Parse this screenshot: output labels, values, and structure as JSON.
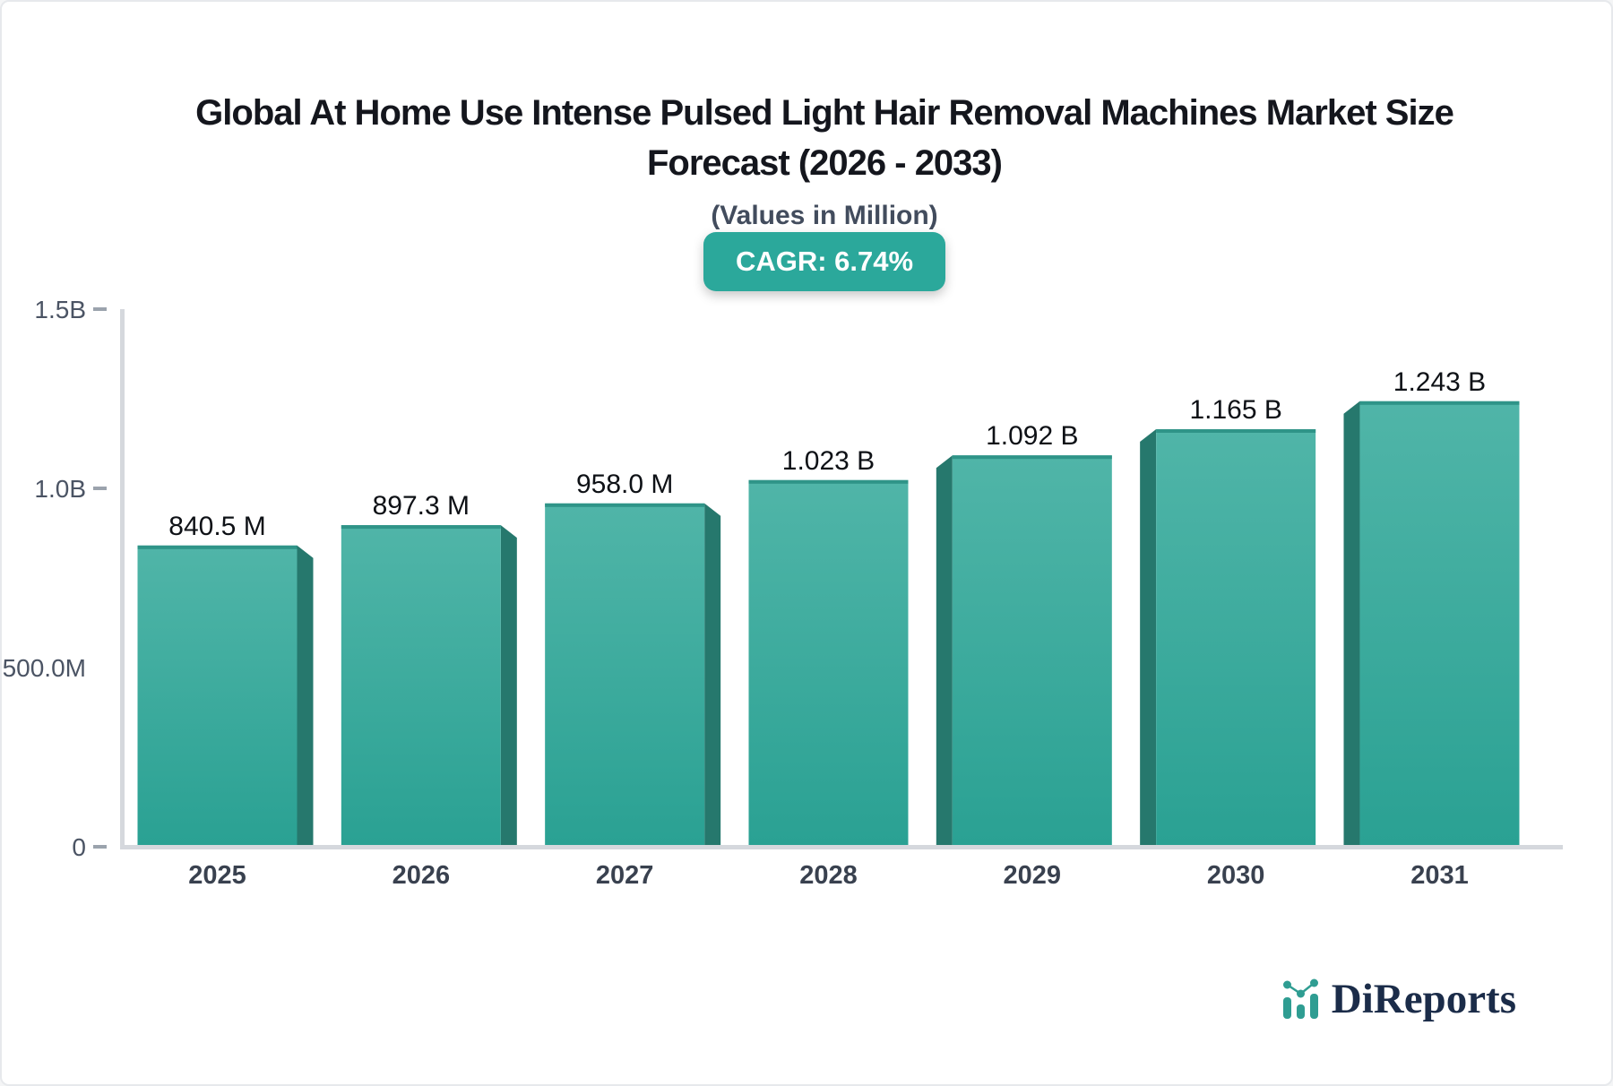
{
  "header": {
    "title_line1": "Global At Home Use Intense Pulsed Light Hair Removal Machines Market Size",
    "title_line2": "Forecast (2026 - 2033)",
    "subtitle": "(Values in Million)",
    "cagr_badge": "CAGR: 6.74%"
  },
  "chart_data": {
    "type": "bar",
    "title": "Global At Home Use Intense Pulsed Light Hair Removal Machines Market Size Forecast (2026 - 2033)",
    "subtitle": "(Values in Million)",
    "annotation": "CAGR: 6.74%",
    "categories": [
      "2025",
      "2026",
      "2027",
      "2028",
      "2029",
      "2030",
      "2031"
    ],
    "values_millions": [
      840.5,
      897.3,
      958.0,
      1023,
      1092,
      1165,
      1243
    ],
    "value_labels": [
      "840.5 M",
      "897.3 M",
      "958.0 M",
      "1.023 B",
      "1.092 B",
      "1.165 B",
      "1.243 B"
    ],
    "xlabel": "",
    "ylabel": "",
    "ylim_millions": [
      0,
      1500
    ],
    "y_ticks": [
      {
        "label": "1.5B",
        "value": 1500,
        "dash": true
      },
      {
        "label": "1.0B",
        "value": 1000,
        "dash": true
      },
      {
        "label": "500.0M",
        "value": 500,
        "dash": false
      },
      {
        "label": "0",
        "value": 0,
        "dash": true
      }
    ],
    "grid": false,
    "legend": "none"
  },
  "colors": {
    "bar_face_top": "#50b5a8",
    "bar_face_bottom": "#2aa193",
    "bar_top_edge": "#2f9488",
    "bar_side": "#26786d",
    "badge_bg": "#2ba89b",
    "axis_line": "#d5d8dd",
    "tick_dash": "#9ba3ad",
    "value_label": "#0e1116",
    "year_label": "#39414f",
    "ytick_label": "#4b5464",
    "logo_teal": "#2f9d92",
    "logo_navy": "#1b2c49"
  },
  "logo": {
    "name": "DiReports"
  }
}
